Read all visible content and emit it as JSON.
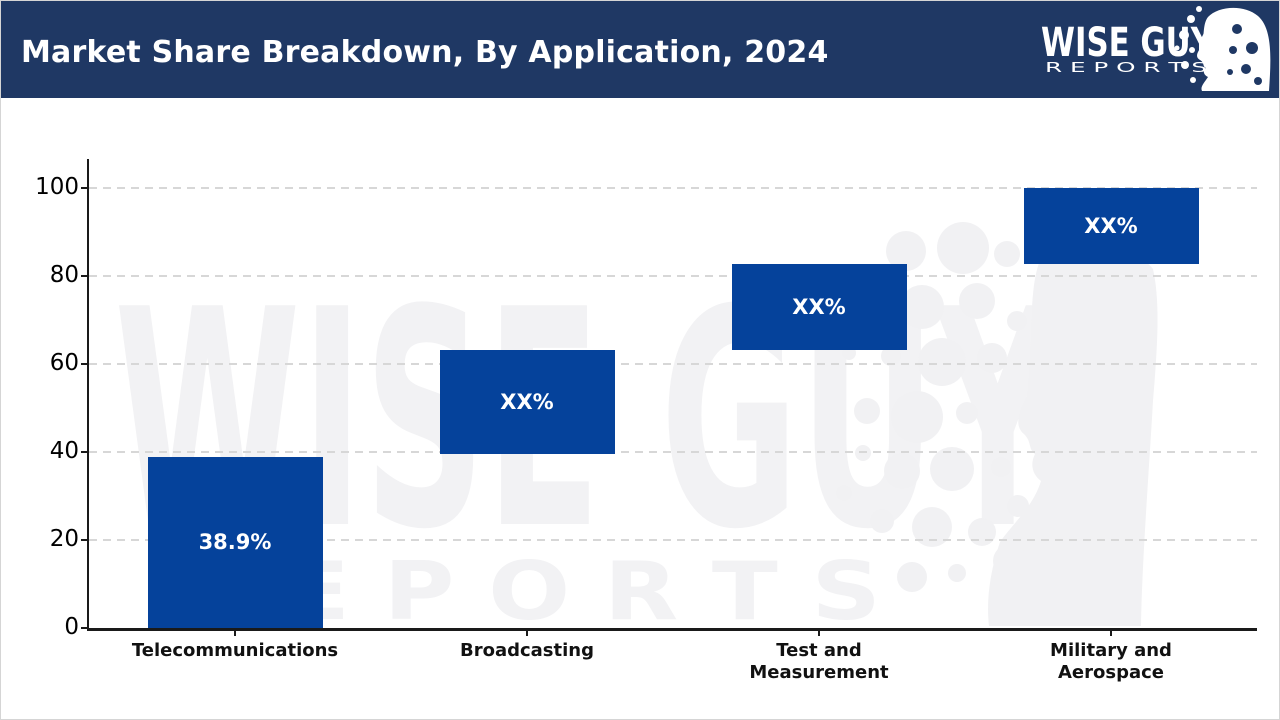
{
  "header": {
    "title": "Market Share Breakdown, By Application, 2024",
    "bg_color": "#1F3864",
    "logo": {
      "line1": "WISE GUY",
      "line2": "R E P O R T S"
    }
  },
  "watermark": {
    "line1": "WISE GUY",
    "line2": "R E P O R T S"
  },
  "chart_data": {
    "type": "bar",
    "subtype": "waterfall",
    "title": "Market Share Breakdown, By Application, 2024",
    "categories": [
      "Telecommunications",
      "Broadcasting",
      "Test and Measurement",
      "Military and Aerospace"
    ],
    "category_lines": [
      [
        "Telecommunications"
      ],
      [
        "Broadcasting"
      ],
      [
        "Test and",
        "Measurement"
      ],
      [
        "Military and",
        "Aerospace"
      ]
    ],
    "segments": [
      {
        "category": "Telecommunications",
        "start": 0,
        "end": 38.9,
        "label": "38.9%"
      },
      {
        "category": "Broadcasting",
        "start": 39.6,
        "end": 63.2,
        "label": "XX%"
      },
      {
        "category": "Test and Measurement",
        "start": 63.2,
        "end": 82.7,
        "label": "XX%"
      },
      {
        "category": "Military and Aerospace",
        "start": 82.7,
        "end": 100,
        "label": "XX%"
      }
    ],
    "xlabel": "",
    "ylabel": "",
    "ylim": [
      0,
      100
    ],
    "yticks": [
      0,
      20,
      40,
      60,
      80,
      100
    ],
    "grid": true,
    "legend": false,
    "bar_color": "#05429B",
    "gridline_color": "#D7D7D7"
  }
}
